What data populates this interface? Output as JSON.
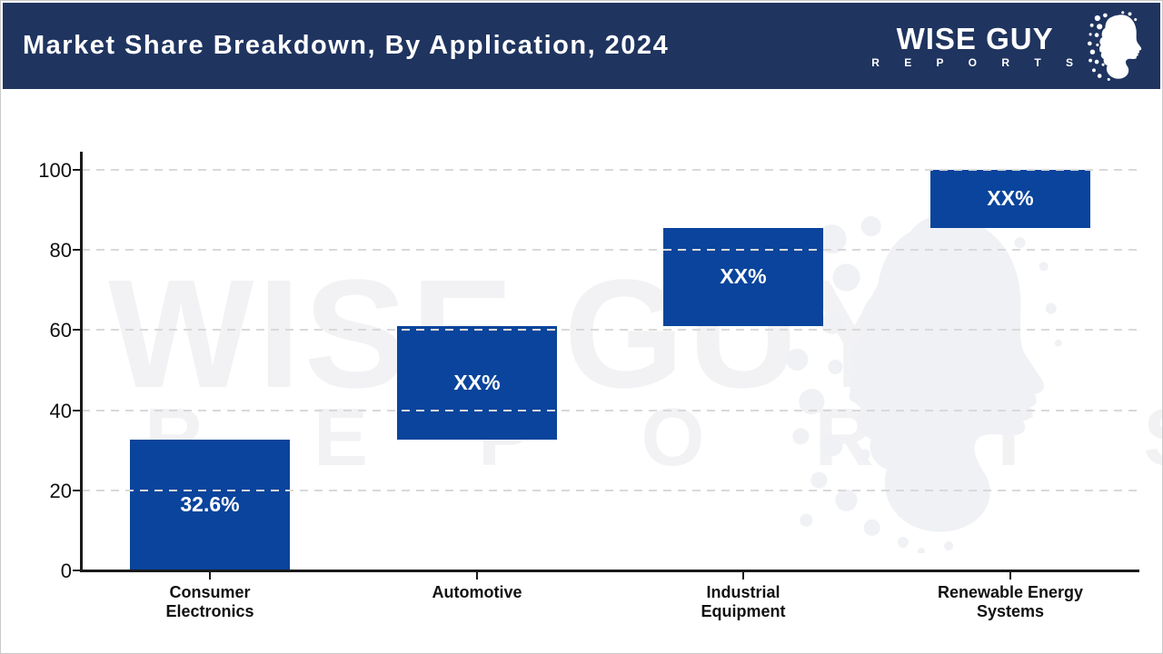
{
  "header": {
    "title": "Market Share Breakdown, By Application, 2024",
    "logo": {
      "name": "WISE GUY",
      "sub": "R E P O R T S"
    }
  },
  "watermark": {
    "text": "WISE GUY",
    "sub": "R E P O R T S"
  },
  "chart_data": {
    "type": "bar",
    "subtype": "waterfall",
    "title": "Market Share Breakdown, By Application, 2024",
    "categories": [
      "Consumer Electronics",
      "Automotive",
      "Industrial Equipment",
      "Renewable Energy Systems"
    ],
    "category_lines": [
      [
        "Consumer",
        "Electronics"
      ],
      [
        "Automotive"
      ],
      [
        "Industrial",
        "Equipment"
      ],
      [
        "Renewable Energy",
        "Systems"
      ]
    ],
    "series": [
      {
        "name": "Market Share %",
        "segment_start": [
          0,
          32.6,
          61,
          85.4
        ],
        "segment_end": [
          32.6,
          61,
          85.4,
          100
        ]
      }
    ],
    "bar_labels": [
      "32.6%",
      "XX%",
      "XX%",
      "XX%"
    ],
    "yticks": [
      0,
      20,
      40,
      60,
      80,
      100
    ],
    "ylim": [
      0,
      105
    ],
    "xlabel": "",
    "ylabel": "",
    "grid": "horizontal-dashed",
    "legend": "none",
    "colors": {
      "bar": "#0a449c",
      "header_bg": "#1f345f",
      "header_text": "#ffffff",
      "axis": "#1a1a1a",
      "grid_line": "#d9d9d9",
      "tick_text": "#111111",
      "bar_label_text": "#ffffff",
      "watermark": "#f2f2f4"
    }
  }
}
